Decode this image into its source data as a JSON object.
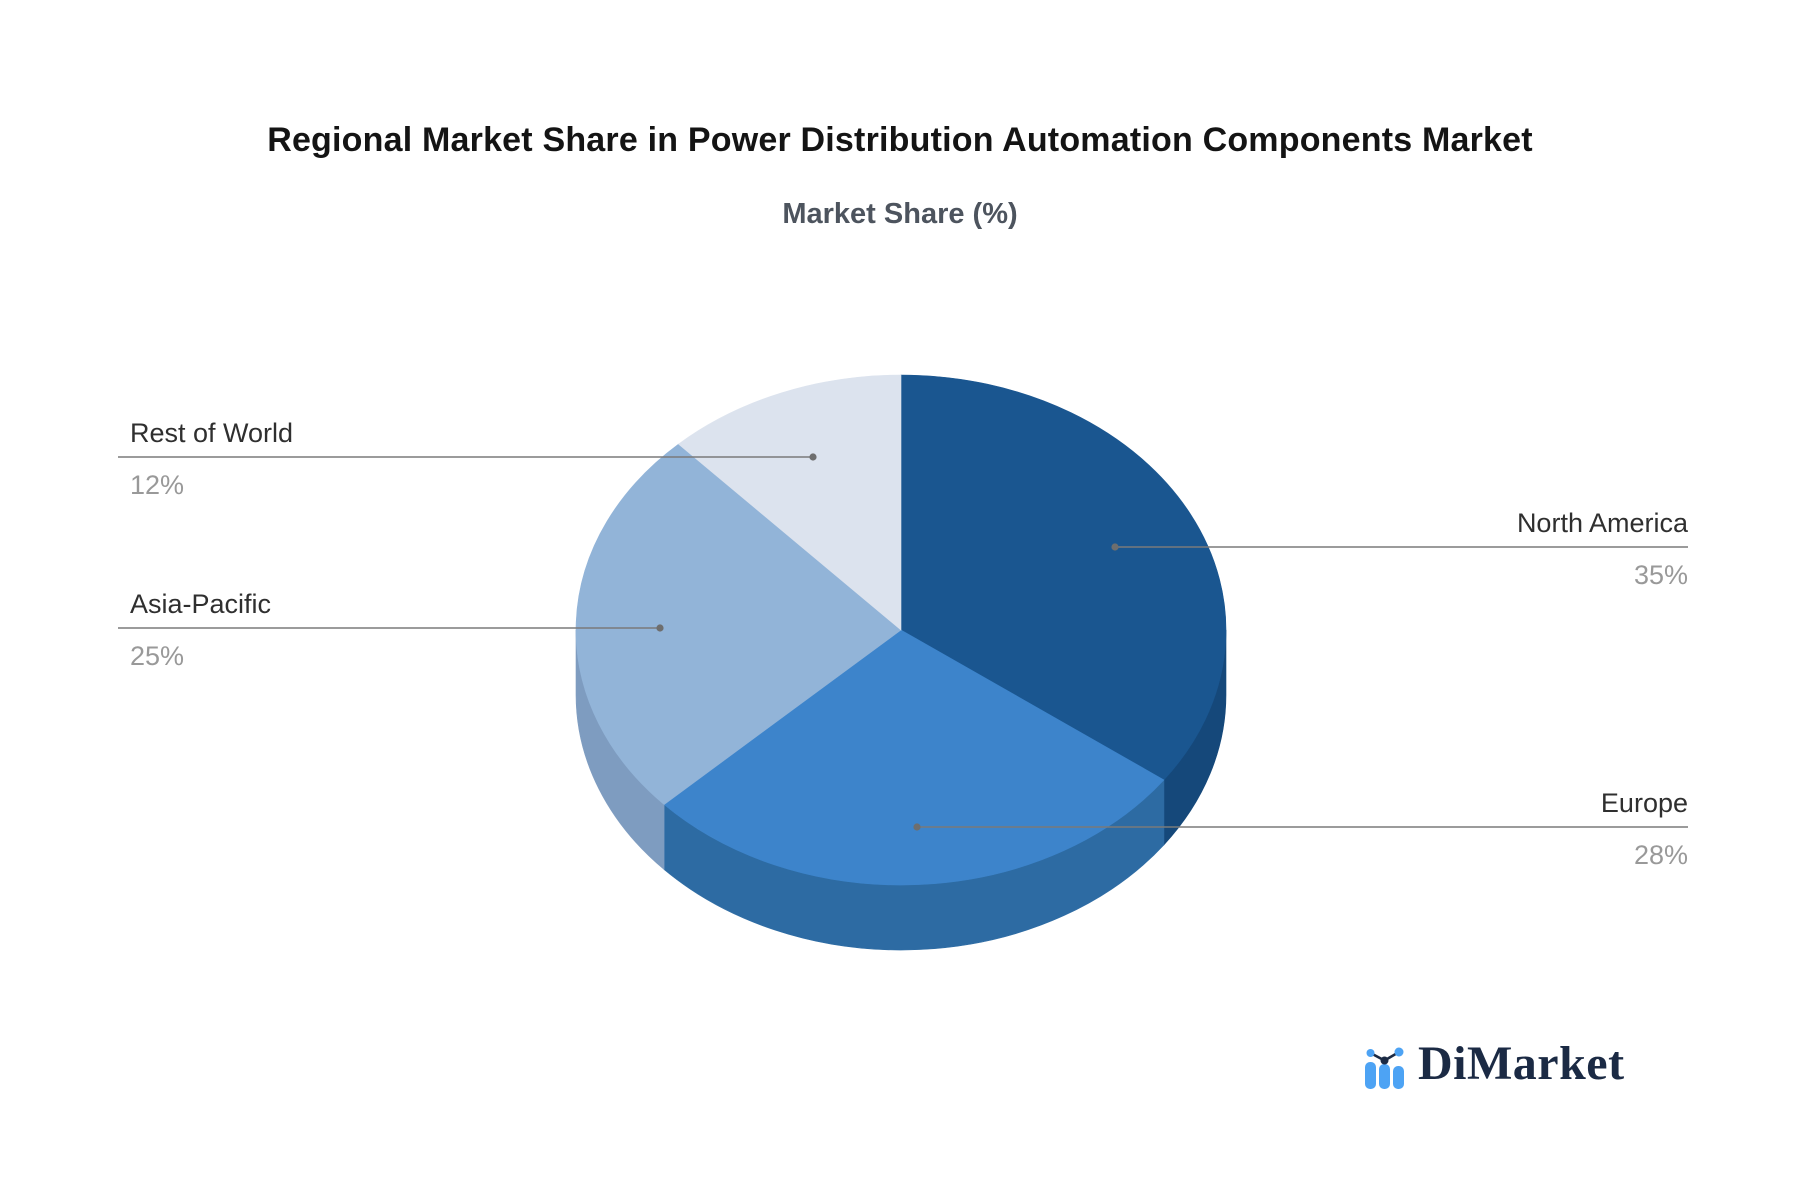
{
  "chart_data": {
    "type": "pie",
    "style": "3d",
    "title": "Regional Market Share in Power Distribution Automation Components Market",
    "subtitle": "Market Share (%)",
    "unit": "%",
    "start_angle_deg": 0,
    "direction": "clockwise",
    "segments": [
      {
        "label": "North America",
        "value": 35,
        "display": "35%",
        "color": "#1A5690",
        "side_color": "#15487A"
      },
      {
        "label": "Europe",
        "value": 28,
        "display": "28%",
        "color": "#3D84CB",
        "side_color": "#2D6BA3"
      },
      {
        "label": "Asia-Pacific",
        "value": 25,
        "display": "25%",
        "color": "#92B4D8",
        "side_color": "#7E9CC0"
      },
      {
        "label": "Rest of World",
        "value": 12,
        "display": "12%",
        "color": "#DCE3EE",
        "side_color": "#B6C1D4"
      }
    ],
    "label_text_color": "#2F2F2F",
    "value_text_color": "#999999",
    "leader_line_color": "#7A7A7A",
    "leader_dot_color": "#6E6E6E",
    "legend_position": "callout-labels",
    "background": "#FFFFFF"
  },
  "logo": {
    "text": "DiMarket",
    "icon": "bar-chart-logo-icon",
    "text_color": "#1B2A44",
    "accent_color": "#4DA3F4"
  }
}
